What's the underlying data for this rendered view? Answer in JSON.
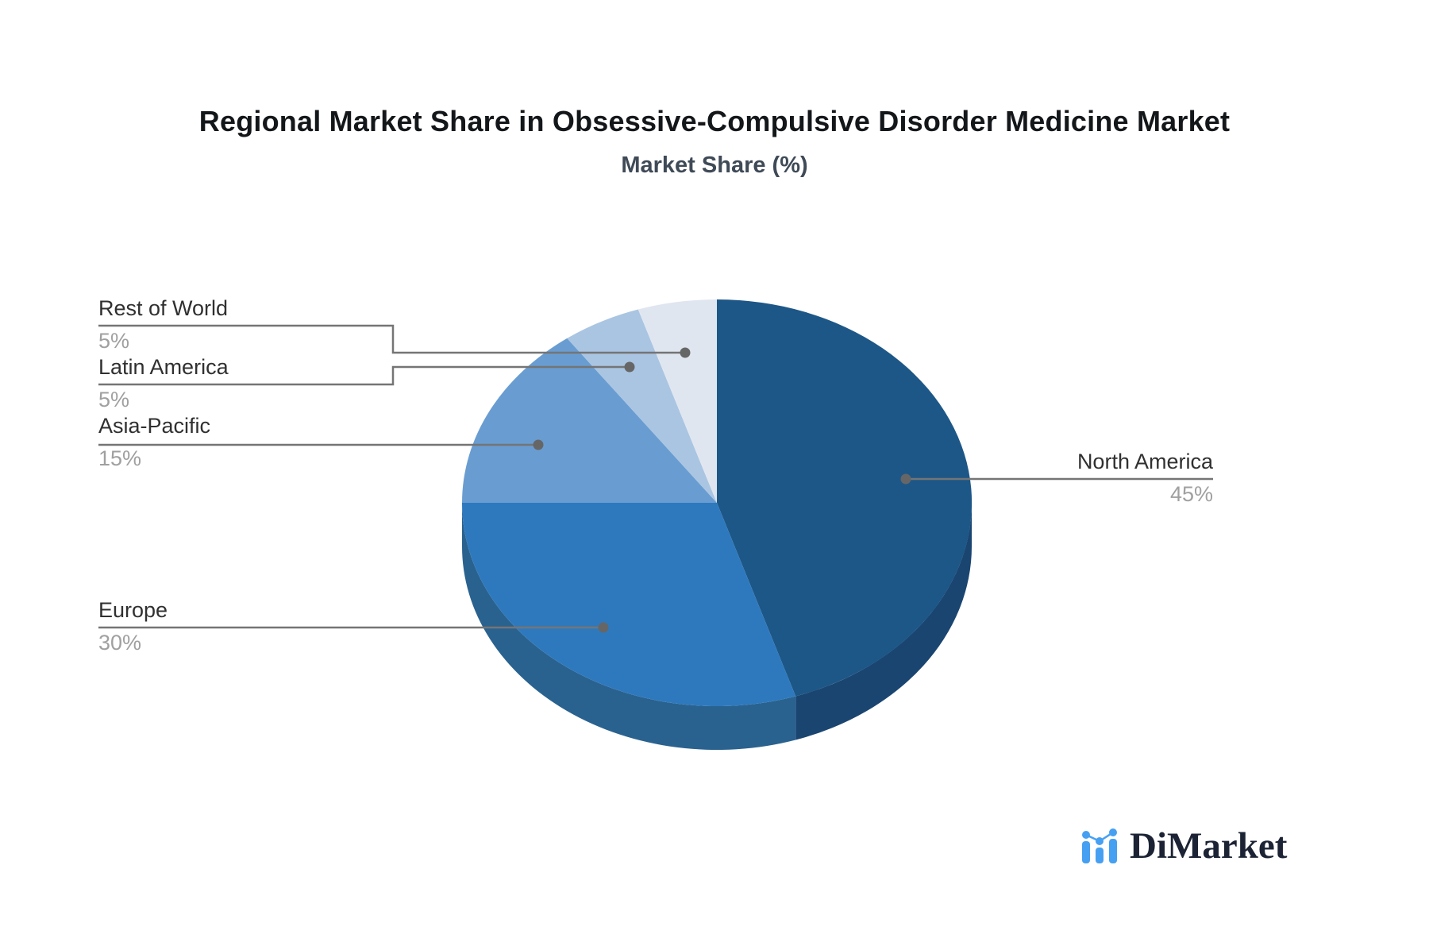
{
  "chart_data": {
    "type": "pie",
    "title": "Regional Market Share in Obsessive-Compulsive Disorder Medicine Market",
    "subtitle": "Market Share (%)",
    "unit": "percent",
    "start_angle_deg": 0,
    "clockwise": true,
    "effect": "3d-depth",
    "legend_position": "callout-labels",
    "slices": [
      {
        "label": "North America",
        "value": 45,
        "share_text": "45%",
        "color": "#1d5787",
        "side_color": "#1a4570"
      },
      {
        "label": "Europe",
        "value": 30,
        "share_text": "30%",
        "color": "#2e79be",
        "side_color": "#2a628f"
      },
      {
        "label": "Asia-Pacific",
        "value": 15,
        "share_text": "15%",
        "color": "#699dd1"
      },
      {
        "label": "Latin America",
        "value": 5,
        "share_text": "5%",
        "color": "#aac5e2"
      },
      {
        "label": "Rest of World",
        "value": 5,
        "share_text": "5%",
        "color": "#e0e6f0"
      }
    ]
  },
  "callout_style": {
    "line_color": "#757575",
    "dot_color": "#666666",
    "label_text_color": "#303030",
    "pct_text_color": "#a0a0a0"
  },
  "logo": {
    "text": "DiMarket",
    "icon": "bar-chart-icon",
    "text_color": "#1b2334",
    "icon_color": "#46a0f2"
  }
}
